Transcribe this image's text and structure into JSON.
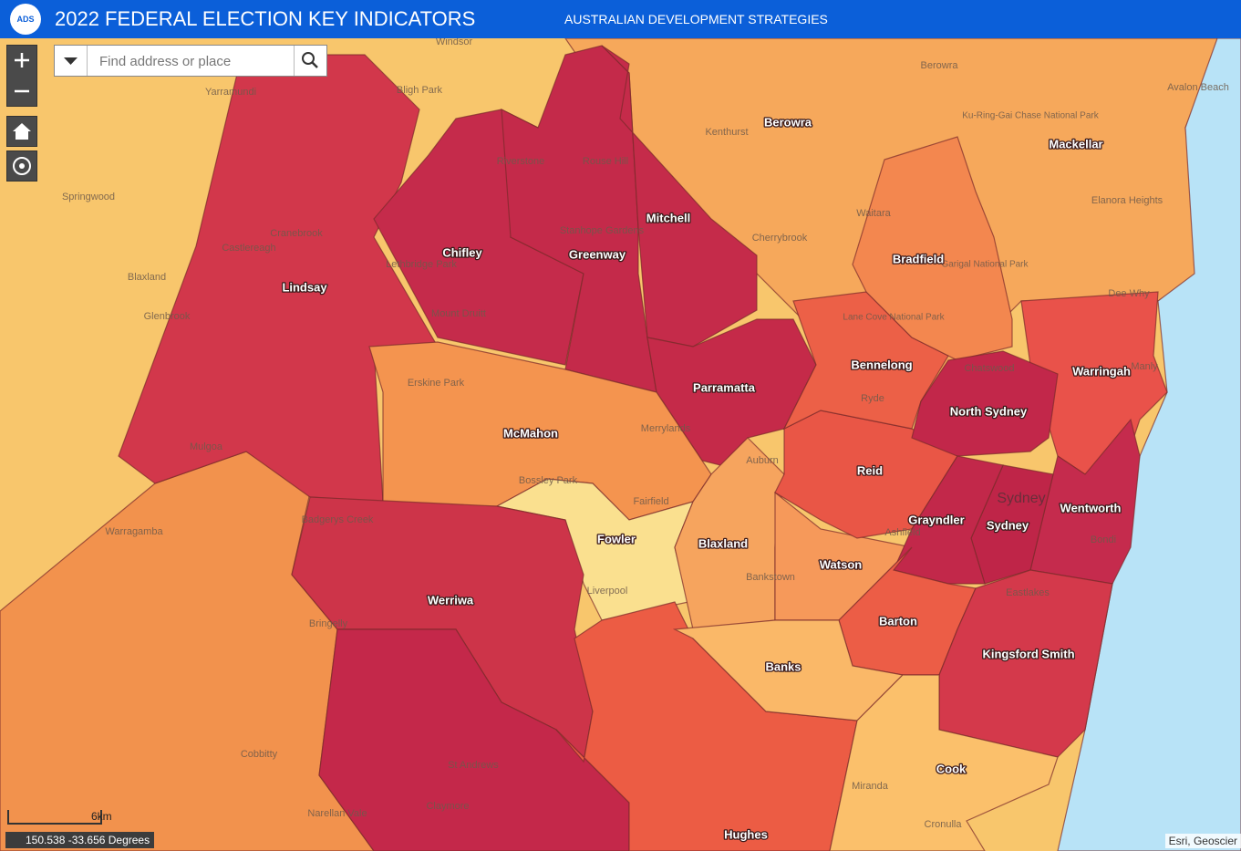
{
  "header": {
    "title": "2022 FEDERAL ELECTION KEY INDICATORS",
    "subtitle": "AUSTRALIAN DEVELOPMENT STRATEGIES",
    "logo": "ADS"
  },
  "search": {
    "placeholder": "Find address or place"
  },
  "electorates": [
    "Lindsay",
    "Chifley",
    "Greenway",
    "Mitchell",
    "Berowra",
    "Mackellar",
    "Bradfield",
    "Bennelong",
    "Warringah",
    "North Sydney",
    "Parramatta",
    "McMahon",
    "Reid",
    "Wentworth",
    "Grayndler",
    "Sydney",
    "Fowler",
    "Blaxland",
    "Watson",
    "Werriwa",
    "Barton",
    "Kingsford Smith",
    "Banks",
    "Cook",
    "Hughes"
  ],
  "places": [
    "Windsor",
    "Yarramundi",
    "Bligh Park",
    "Riverstone",
    "Rouse Hill",
    "Kenthurst",
    "Berowra",
    "Avalon Beach",
    "Springwood",
    "Cranebrook",
    "Castlereagh",
    "Blaxland",
    "Glenbrook",
    "Lethbridge Park",
    "Stanhope Gardens",
    "Mount Druitt",
    "Cherrybrook",
    "Waitara",
    "Elanora Heights",
    "Erskine Park",
    "Merrylands",
    "Mulgoa",
    "Bossley Park",
    "Fairfield",
    "Auburn",
    "Ryde",
    "Chatswood",
    "Badgerys Creek",
    "Warragamba",
    "Liverpool",
    "Bankstown",
    "Ashfield",
    "Bringelly",
    "Eastlakes",
    "Bondi",
    "Sydney",
    "Cobbitty",
    "St Andrews",
    "Claymore",
    "Narellan Vale",
    "Miranda",
    "Cronulla",
    "Ku-Ring-Gai Chase National Park",
    "Garigal National Park",
    "Lane Cove National Park",
    "Dee Why",
    "Manly"
  ],
  "scale": "6km",
  "coordinates": "150.538 -33.656 Degrees",
  "attribution": "Esri, Geoscier"
}
